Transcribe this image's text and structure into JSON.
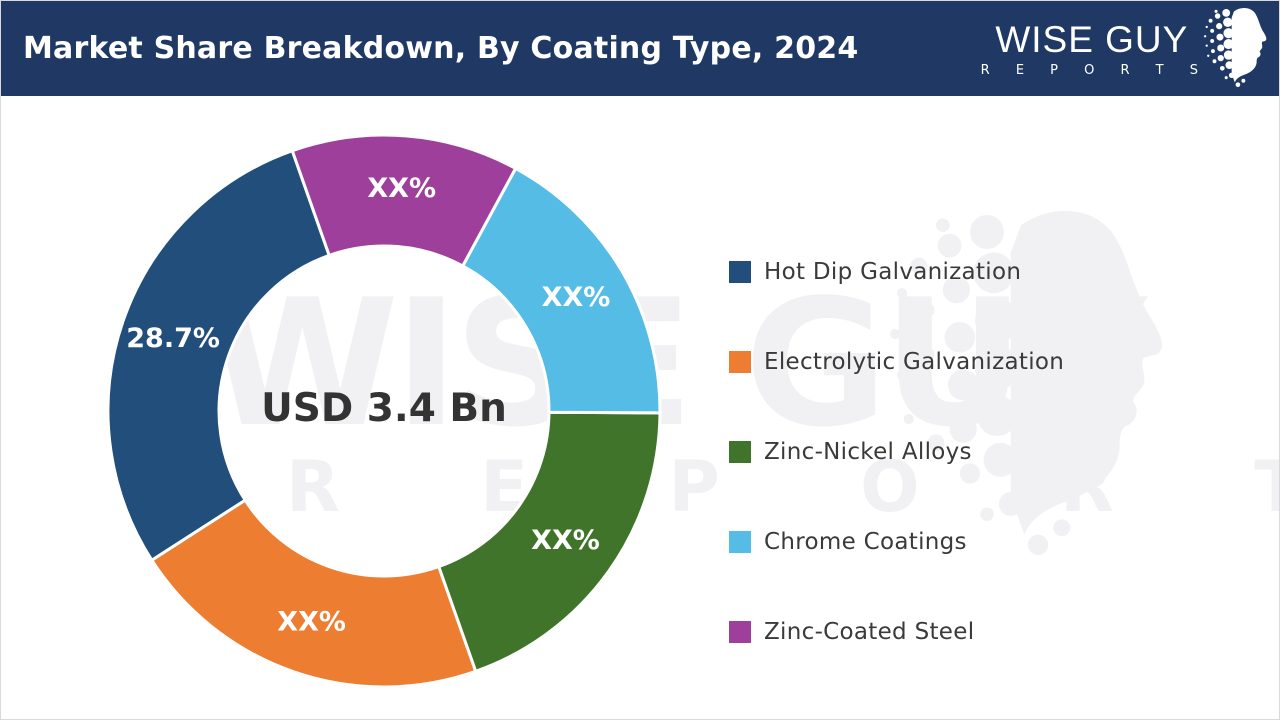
{
  "header": {
    "title": "Market Share Breakdown, By Coating Type, 2024",
    "bg_color": "#1f3864",
    "logo": {
      "wordmark": "WISE GUY",
      "subtitle": "R E P O R T S"
    }
  },
  "watermark": {
    "line1": "WISE GUY",
    "line2": "R E P O R T S"
  },
  "chart_data": {
    "type": "pie",
    "subtype": "donut",
    "title": "Market Share Breakdown, By Coating Type, 2024",
    "center_text": "USD 3.4 Bn",
    "start_angle_deg": -19.4,
    "direction": "counterclockwise",
    "gap_color": "#ffffff",
    "segments": [
      {
        "name": "Hot Dip Galvanization",
        "label": "28.7%",
        "value_pct": 28.7,
        "color": "#214e7b"
      },
      {
        "name": "Electrolytic Galvanization",
        "label": "XX%",
        "value_pct": 21.3,
        "color": "#ed7d31"
      },
      {
        "name": "Zinc-Nickel Alloys",
        "label": "XX%",
        "value_pct": 19.5,
        "color": "#41742b"
      },
      {
        "name": "Chrome Coatings",
        "label": "XX%",
        "value_pct": 17.2,
        "color": "#55bce6"
      },
      {
        "name": "Zinc-Coated Steel",
        "label": "XX%",
        "value_pct": 13.3,
        "color": "#9d3f9b"
      }
    ]
  }
}
